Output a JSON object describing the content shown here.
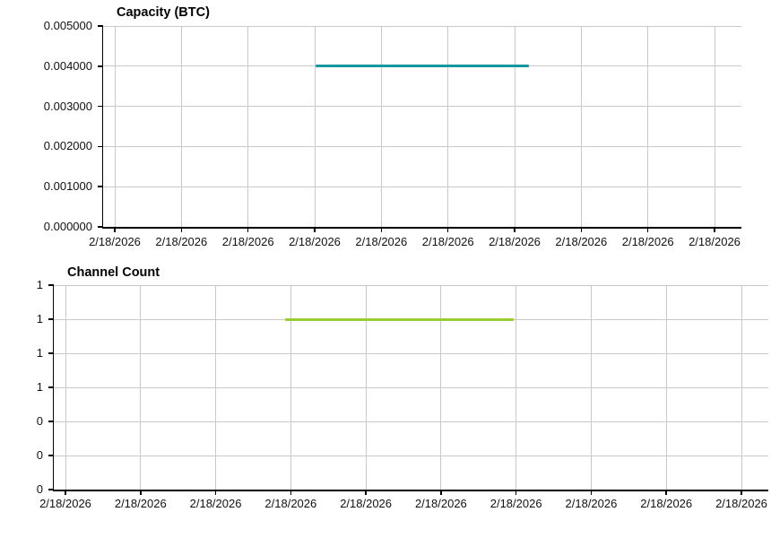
{
  "chart_data": [
    {
      "type": "line",
      "title": "Capacity (BTC)",
      "grid": true,
      "legend": "none",
      "background_color": "#ffffff",
      "axis_color": "#000000",
      "gridline_color": "#c9c9c9",
      "ylim": [
        0,
        0.005
      ],
      "y_tick_values": [
        0.005,
        0.004,
        0.003,
        0.002,
        0.001,
        0
      ],
      "y_tick_labels": [
        "0.005000",
        "0.004000",
        "0.003000",
        "0.002000",
        "0.001000",
        "0.000000"
      ],
      "x_tick_labels": [
        "2/18/2026",
        "2/18/2026",
        "2/18/2026",
        "2/18/2026",
        "2/18/2026",
        "2/18/2026",
        "2/18/2026",
        "2/18/2026",
        "2/18/2026",
        "2/18/2026"
      ],
      "series": [
        {
          "name": "Capacity",
          "color": "#1497a1",
          "shape": "constant-horizontal-segment",
          "value": 0.004,
          "x_start_frac": 0.333,
          "x_end_frac": 0.667
        }
      ]
    },
    {
      "type": "line",
      "title": "Channel Count",
      "grid": true,
      "legend": "none",
      "background_color": "#ffffff",
      "axis_color": "#000000",
      "gridline_color": "#c9c9c9",
      "ylim": [
        0,
        1.2
      ],
      "y_tick_values": [
        1.2,
        1.0,
        0.8,
        0.6,
        0.4,
        0.2,
        0
      ],
      "y_tick_labels": [
        "1",
        "1",
        "1",
        "1",
        "0",
        "0",
        "0"
      ],
      "x_tick_labels": [
        "2/18/2026",
        "2/18/2026",
        "2/18/2026",
        "2/18/2026",
        "2/18/2026",
        "2/18/2026",
        "2/18/2026",
        "2/18/2026",
        "2/18/2026",
        "2/18/2026"
      ],
      "series": [
        {
          "name": "Channel Count",
          "color": "#9acd32",
          "shape": "constant-horizontal-segment",
          "value": 1,
          "x_start_frac": 0.324,
          "x_end_frac": 0.644
        }
      ]
    }
  ]
}
